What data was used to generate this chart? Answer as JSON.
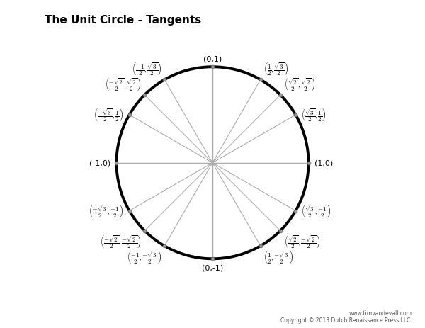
{
  "title": "The Unit Circle - Tangents",
  "background_color": "#ffffff",
  "circle_color": "#000000",
  "circle_linewidth": 2.8,
  "spoke_color": "#aaaaaa",
  "axis_color": "#aaaaaa",
  "dot_color": "#888888",
  "dot_size": 3.5,
  "copyright": "www.timvandevall.com\nCopyright © 2013 Dutch Renaissance Press LLC.",
  "angles_deg": [
    0,
    30,
    45,
    60,
    90,
    120,
    135,
    150,
    180,
    210,
    225,
    240,
    270,
    300,
    315,
    330
  ],
  "points": [
    [
      1.0,
      0.0
    ],
    [
      0.866,
      0.5
    ],
    [
      0.707,
      0.707
    ],
    [
      0.5,
      0.866
    ],
    [
      0.0,
      1.0
    ],
    [
      -0.5,
      0.866
    ],
    [
      -0.707,
      0.707
    ],
    [
      -0.866,
      0.5
    ],
    [
      -1.0,
      0.0
    ],
    [
      -0.866,
      -0.5
    ],
    [
      -0.707,
      -0.707
    ],
    [
      -0.5,
      -0.866
    ],
    [
      0.0,
      -1.0
    ],
    [
      0.5,
      -0.866
    ],
    [
      0.707,
      -0.707
    ],
    [
      0.866,
      -0.5
    ]
  ]
}
